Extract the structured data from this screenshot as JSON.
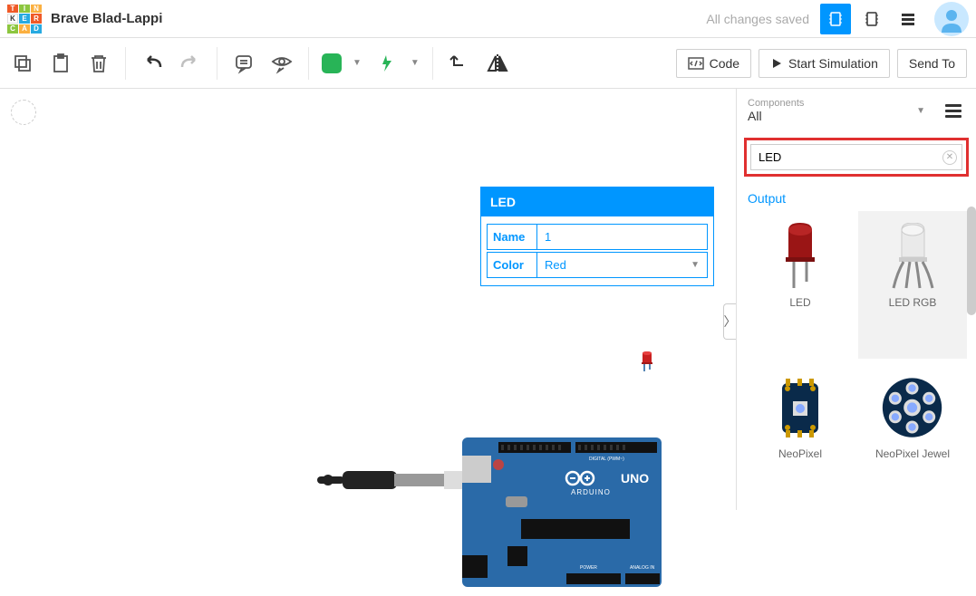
{
  "header": {
    "project_title": "Brave Blad-Lappi",
    "saved_status": "All changes saved",
    "logo_cells": [
      {
        "t": "T",
        "c": "#f05a28"
      },
      {
        "t": "I",
        "c": "#8cc63f"
      },
      {
        "t": "N",
        "c": "#fbb040"
      },
      {
        "t": "K",
        "c": "#ffffff"
      },
      {
        "t": "E",
        "c": "#27aae1"
      },
      {
        "t": "R",
        "c": "#f05a28"
      },
      {
        "t": "C",
        "c": "#8cc63f"
      },
      {
        "t": "A",
        "c": "#fbb040"
      },
      {
        "t": "D",
        "c": "#27aae1"
      }
    ]
  },
  "toolbar": {
    "code_btn": "Code",
    "sim_btn": "Start Simulation",
    "send_btn": "Send To",
    "color_swatch": "#28b457"
  },
  "property_panel": {
    "title": "LED",
    "name_label": "Name",
    "name_value": "1",
    "color_label": "Color",
    "color_value": "Red"
  },
  "sidepanel": {
    "dropdown_label": "Components",
    "dropdown_value": "All",
    "search_value": "LED",
    "section": "Output",
    "components": [
      {
        "label": "LED"
      },
      {
        "label": "LED RGB"
      },
      {
        "label": "NeoPixel"
      },
      {
        "label": "NeoPixel Jewel"
      }
    ]
  },
  "canvas": {
    "arduino_label": "UNO",
    "arduino_brand": "ARDUINO",
    "board_color": "#2a6aa8",
    "usb_color": "#222222"
  }
}
